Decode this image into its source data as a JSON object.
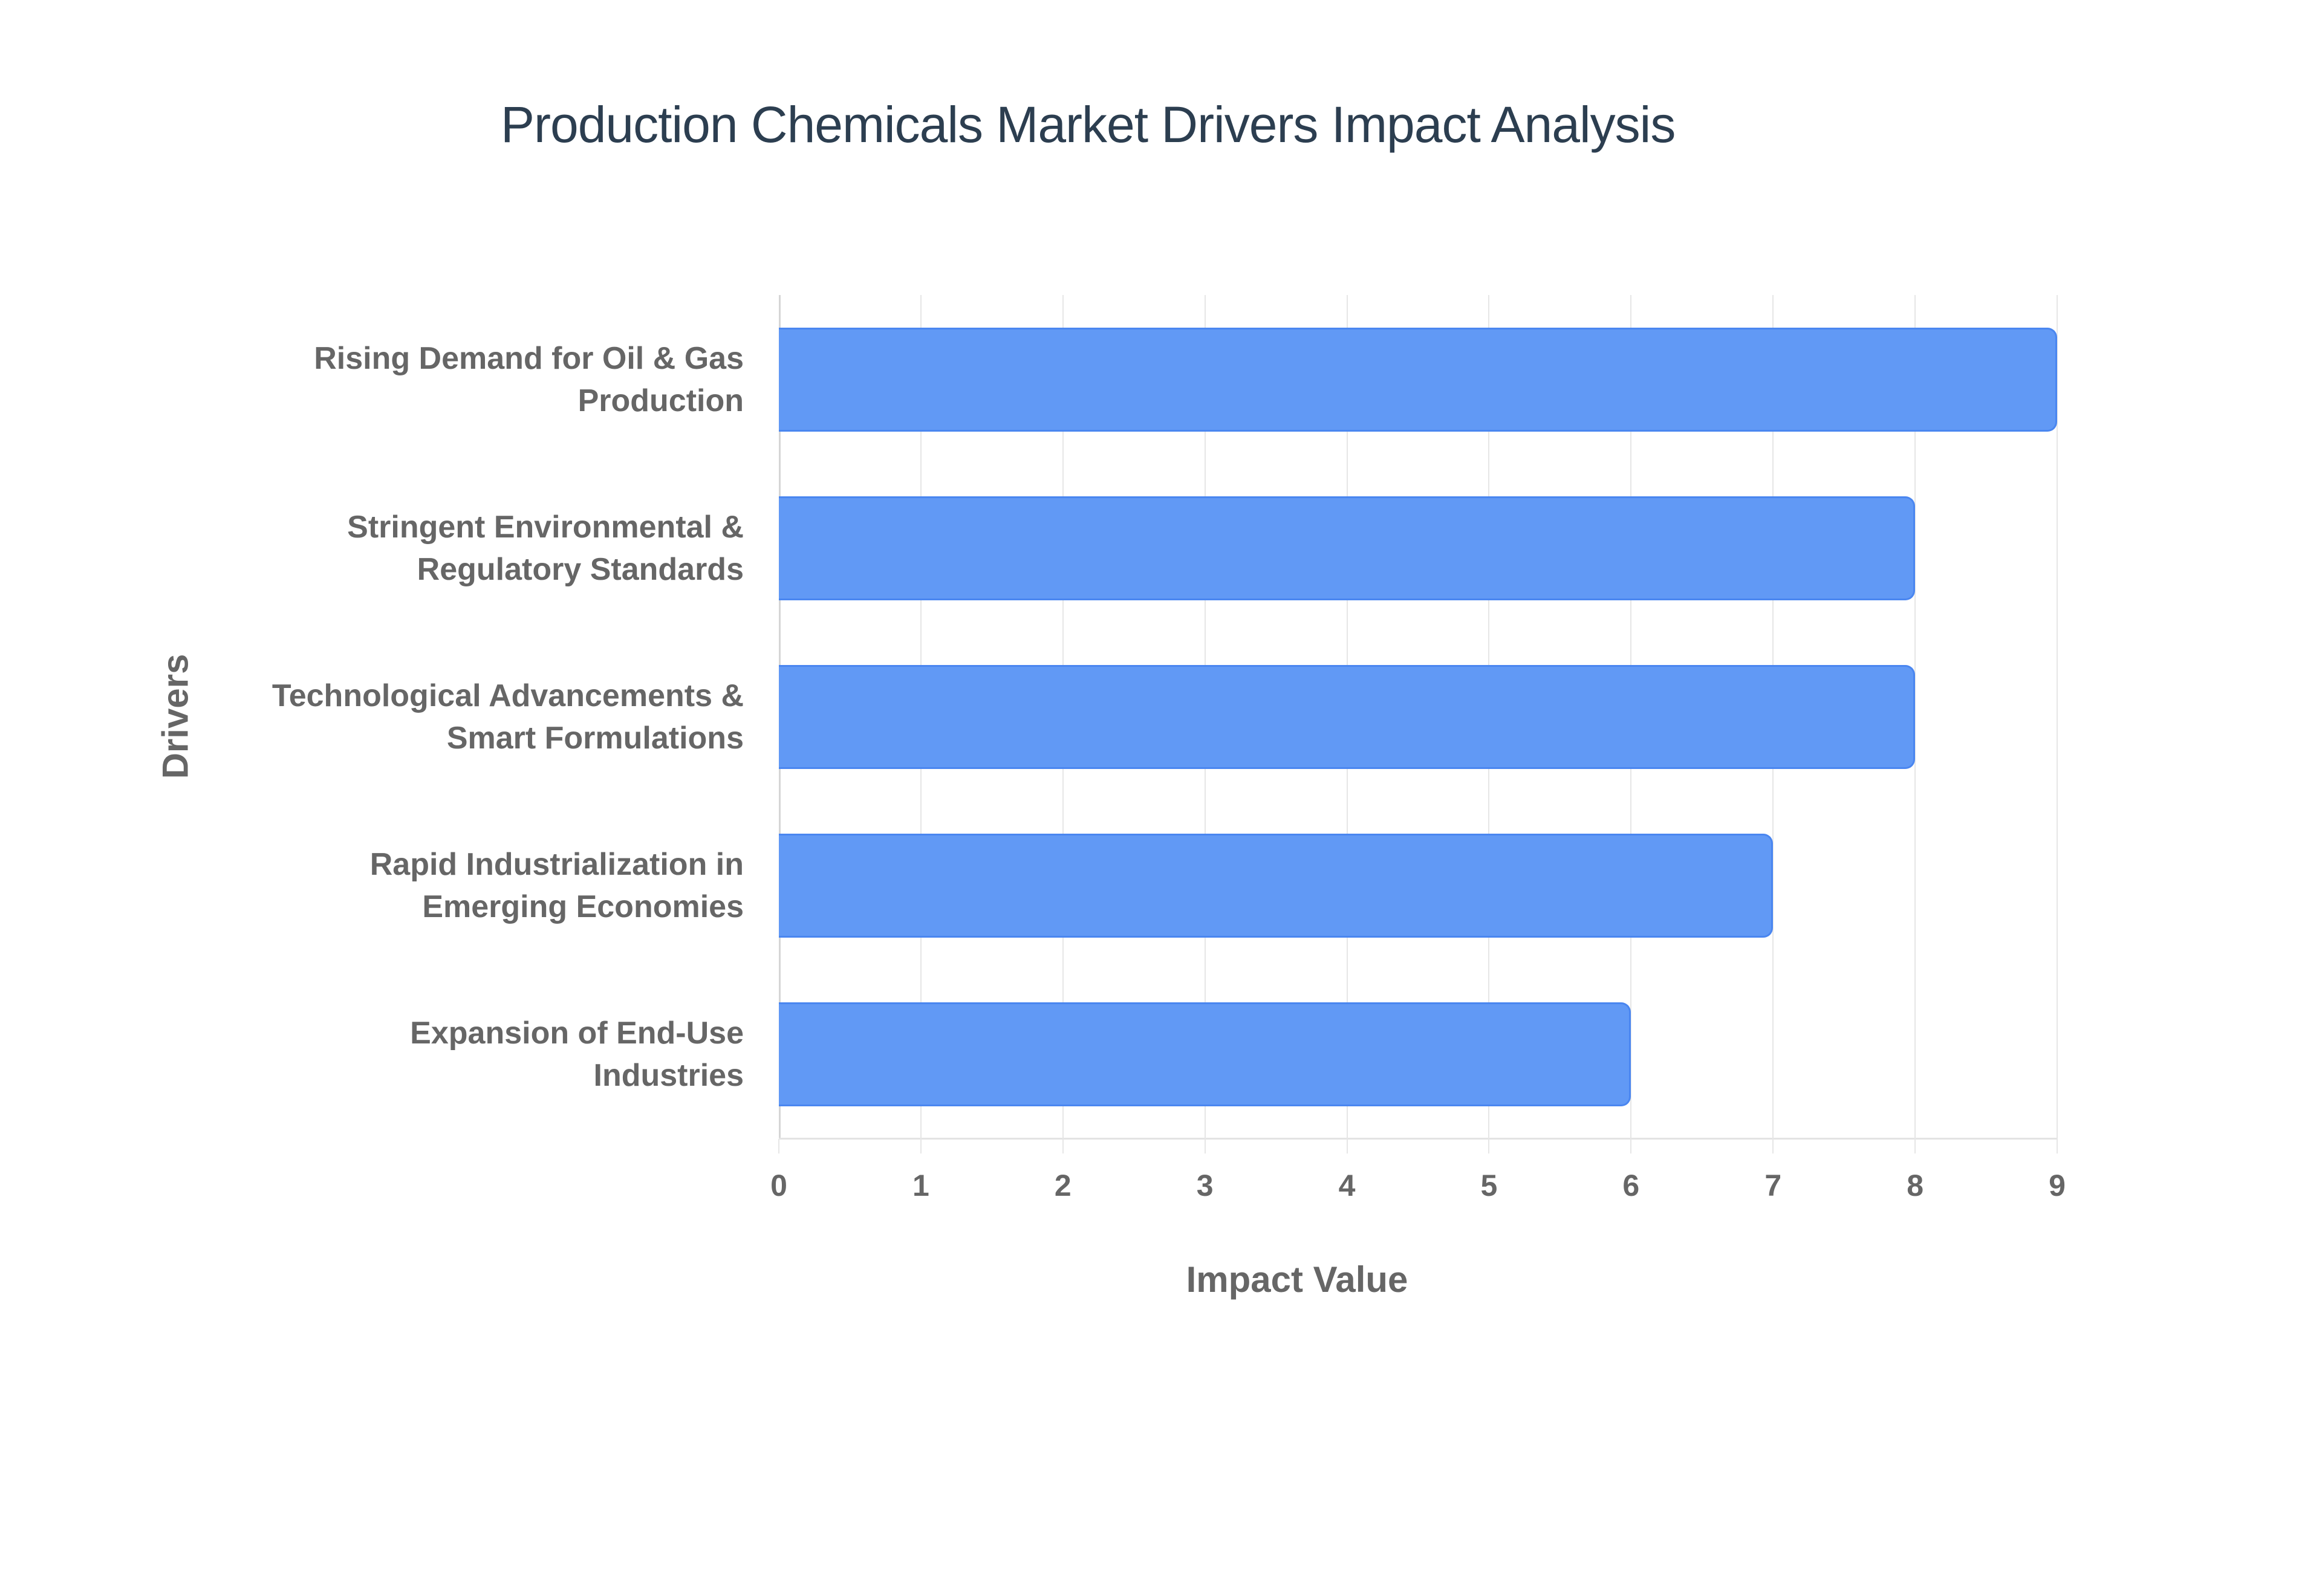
{
  "chart_data": {
    "type": "bar",
    "orientation": "horizontal",
    "title": "Production Chemicals Market Drivers Impact Analysis",
    "xlabel": "Impact Value",
    "ylabel": "Drivers",
    "categories": [
      "Rising Demand for Oil & Gas Production",
      "Stringent Environmental & Regulatory Standards",
      "Technological Advancements & Smart Formulations",
      "Rapid Industrialization in Emerging Economies",
      "Expansion of End-Use Industries"
    ],
    "category_lines": [
      [
        "Rising Demand for Oil & Gas",
        "Production"
      ],
      [
        "Stringent Environmental &",
        "Regulatory Standards"
      ],
      [
        "Technological Advancements &",
        "Smart Formulations"
      ],
      [
        "Rapid Industrialization in",
        "Emerging Economies"
      ],
      [
        "Expansion of End-Use",
        "Industries"
      ]
    ],
    "values": [
      9,
      8,
      8,
      7,
      6
    ],
    "xlim": [
      0,
      9
    ],
    "x_ticks": [
      "0",
      "1",
      "2",
      "3",
      "4",
      "5",
      "6",
      "7",
      "8",
      "9"
    ],
    "grid": true,
    "legend": "none",
    "colors": {
      "bar": "#6199f5",
      "bar_border": "#4a86f0",
      "title": "#2c3e50",
      "axis_text": "#666666"
    }
  }
}
